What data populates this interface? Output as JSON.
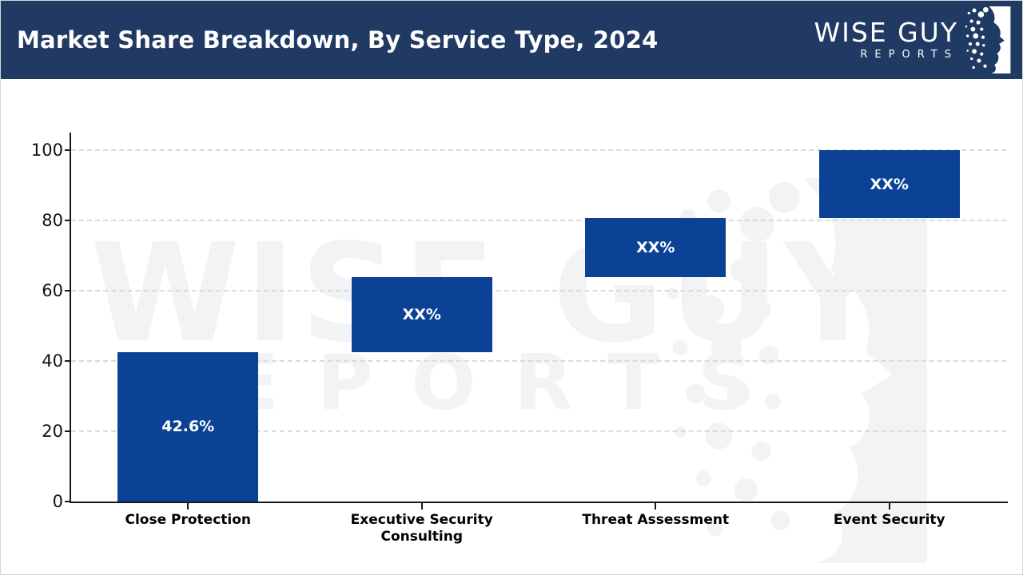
{
  "header": {
    "title": "Market Share Breakdown, By Service Type, 2024",
    "bg_color": "#213a64",
    "logo": {
      "wordmark": "WISE GUY",
      "subtitle": "REPORTS"
    }
  },
  "watermark": {
    "line1": "WISE GUY",
    "line2": "REPORTS"
  },
  "chart_data": {
    "type": "bar",
    "variant": "waterfall",
    "title": "Market Share Breakdown, By Service Type, 2024",
    "categories": [
      "Close Protection",
      "Executive Security\nConsulting",
      "Threat Assessment",
      "Event Security"
    ],
    "segments": [
      {
        "category": "Close Protection",
        "start": 0,
        "end": 42.6,
        "label": "42.6%"
      },
      {
        "category": "Executive Security Consulting",
        "start": 42.6,
        "end": 63.8,
        "label": "XX%"
      },
      {
        "category": "Threat Assessment",
        "start": 63.8,
        "end": 80.6,
        "label": "XX%"
      },
      {
        "category": "Event Security",
        "start": 80.6,
        "end": 100,
        "label": "XX%"
      }
    ],
    "y_ticks": [
      0,
      20,
      40,
      60,
      80,
      100
    ],
    "ylim": [
      0,
      100
    ],
    "xlabel": "",
    "ylabel": "",
    "legend": "none",
    "grid": "horizontal-dashed",
    "bar_color": "#0b4296",
    "bar_label_color": "#ffffff",
    "axis_color": "#1a1a1a",
    "grid_color": "#dadada"
  }
}
